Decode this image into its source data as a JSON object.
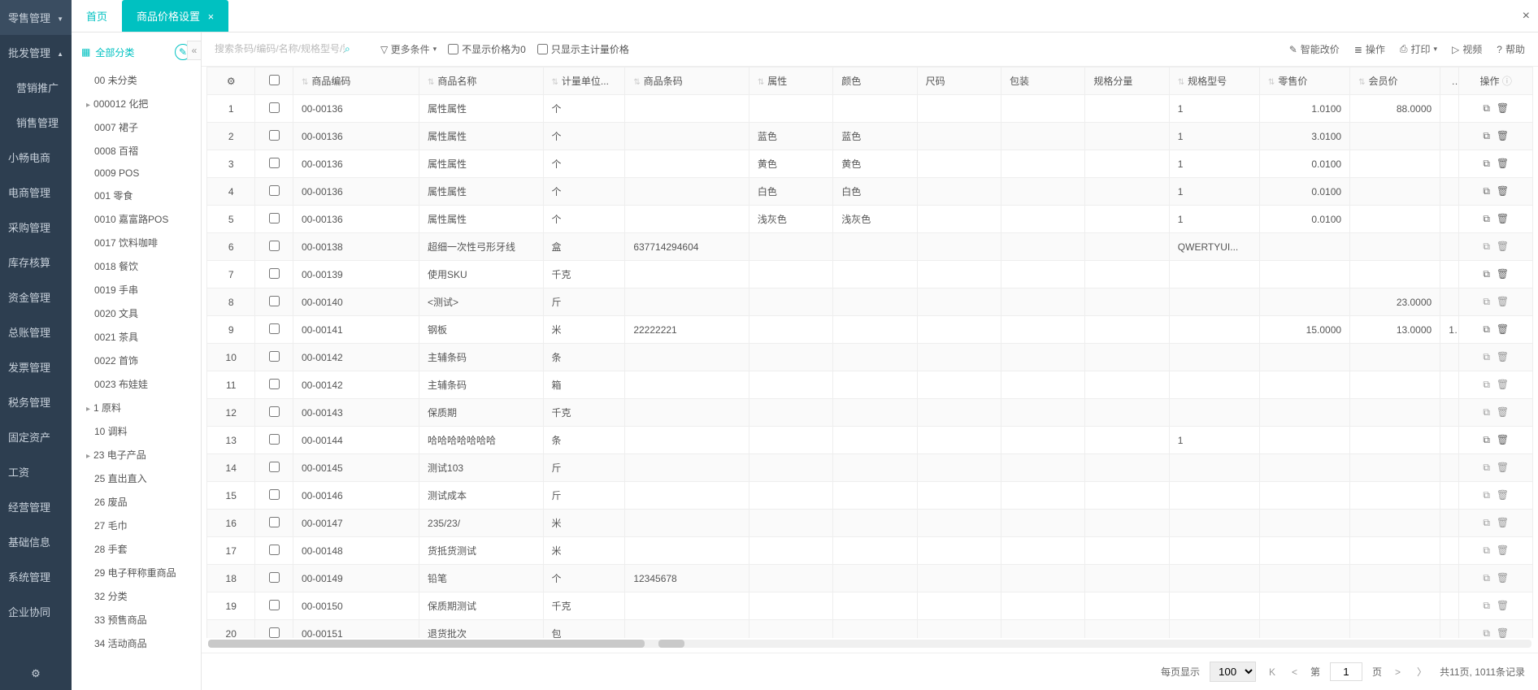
{
  "sidebar": {
    "items": [
      {
        "label": "零售管理",
        "expand": "down"
      },
      {
        "label": "批发管理",
        "expand": "up"
      },
      {
        "label": "营销推广",
        "sub": true
      },
      {
        "label": "销售管理",
        "sub": true
      },
      {
        "label": "小畅电商"
      },
      {
        "label": "电商管理"
      },
      {
        "label": "采购管理"
      },
      {
        "label": "库存核算"
      },
      {
        "label": "资金管理"
      },
      {
        "label": "总账管理"
      },
      {
        "label": "发票管理"
      },
      {
        "label": "税务管理"
      },
      {
        "label": "固定资产"
      },
      {
        "label": "工资"
      },
      {
        "label": "经营管理"
      },
      {
        "label": "基础信息"
      },
      {
        "label": "系统管理"
      },
      {
        "label": "企业协同"
      }
    ]
  },
  "tabs": {
    "home": "首页",
    "active": "商品价格设置",
    "close_glyph": "×"
  },
  "category": {
    "all": "全部分类",
    "items": [
      {
        "label": "00 未分类"
      },
      {
        "label": "000012 化把",
        "parent": true
      },
      {
        "label": "0007 裙子"
      },
      {
        "label": "0008 百褶"
      },
      {
        "label": "0009 POS"
      },
      {
        "label": "001 零食"
      },
      {
        "label": "0010 嘉富路POS"
      },
      {
        "label": "0017 饮料咖啡"
      },
      {
        "label": "0018 餐饮"
      },
      {
        "label": "0019 手串"
      },
      {
        "label": "0020 文具"
      },
      {
        "label": "0021 茶具"
      },
      {
        "label": "0022 首饰"
      },
      {
        "label": "0023 布娃娃"
      },
      {
        "label": "1 原料",
        "parent": true
      },
      {
        "label": "10 调料"
      },
      {
        "label": "23 电子产品",
        "parent": true
      },
      {
        "label": "25 直出直入"
      },
      {
        "label": "26 废品"
      },
      {
        "label": "27 毛巾"
      },
      {
        "label": "28 手套"
      },
      {
        "label": "29 电子秤称重商品"
      },
      {
        "label": "32 分类"
      },
      {
        "label": "33 预售商品"
      },
      {
        "label": "34 活动商品"
      }
    ]
  },
  "toolbar": {
    "search_placeholder": "搜索条码/编码/名称/规格型号/别名",
    "more_filter": "更多条件",
    "hide_zero": "不显示价格为0",
    "only_main": "只显示主计量价格",
    "smart_edit": "智能改价",
    "operate": "操作",
    "print": "打印",
    "video": "视频",
    "help": "帮助"
  },
  "columns": {
    "code": "商品编码",
    "name": "商品名称",
    "unit": "计量单位...",
    "barcode": "商品条码",
    "attr": "属性",
    "color": "颜色",
    "size": "尺码",
    "pack": "包装",
    "specqty": "规格分量",
    "specmodel": "规格型号",
    "retail": "零售价",
    "member": "会员价",
    "action": "操作"
  },
  "rows": [
    {
      "n": "1",
      "code": "00-00136",
      "name": "属性属性",
      "unit": "个",
      "barcode": "",
      "attr": "",
      "color": "",
      "specmodel": "1",
      "retail": "1.0100",
      "member": "88.0000",
      "act": true
    },
    {
      "n": "2",
      "code": "00-00136",
      "name": "属性属性",
      "unit": "个",
      "barcode": "",
      "attr": "蓝色",
      "color": "蓝色",
      "specmodel": "1",
      "retail": "3.0100",
      "member": "",
      "act": true
    },
    {
      "n": "3",
      "code": "00-00136",
      "name": "属性属性",
      "unit": "个",
      "barcode": "",
      "attr": "黄色",
      "color": "黄色",
      "specmodel": "1",
      "retail": "0.0100",
      "member": "",
      "act": true
    },
    {
      "n": "4",
      "code": "00-00136",
      "name": "属性属性",
      "unit": "个",
      "barcode": "",
      "attr": "白色",
      "color": "白色",
      "specmodel": "1",
      "retail": "0.0100",
      "member": "",
      "act": true
    },
    {
      "n": "5",
      "code": "00-00136",
      "name": "属性属性",
      "unit": "个",
      "barcode": "",
      "attr": "浅灰色",
      "color": "浅灰色",
      "specmodel": "1",
      "retail": "0.0100",
      "member": "",
      "act": true
    },
    {
      "n": "6",
      "code": "00-00138",
      "name": "超细一次性弓形牙线",
      "unit": "盒",
      "barcode": "637714294604",
      "attr": "",
      "color": "",
      "specmodel": "QWERTYUI...",
      "retail": "",
      "member": "",
      "act": false
    },
    {
      "n": "7",
      "code": "00-00139",
      "name": "使用SKU",
      "unit": "千克",
      "barcode": "",
      "attr": "",
      "color": "",
      "specmodel": "",
      "retail": "",
      "member": "",
      "act": true
    },
    {
      "n": "8",
      "code": "00-00140",
      "name": "<测试>",
      "unit": "斤",
      "barcode": "",
      "attr": "",
      "color": "",
      "specmodel": "",
      "retail": "",
      "member": "23.0000",
      "act": false
    },
    {
      "n": "9",
      "code": "00-00141",
      "name": "钢板",
      "unit": "米",
      "barcode": "22222221",
      "attr": "",
      "color": "",
      "specmodel": "",
      "retail": "15.0000",
      "member": "13.0000",
      "act": true,
      "extra": "1"
    },
    {
      "n": "10",
      "code": "00-00142",
      "name": "主辅条码",
      "unit": "条",
      "barcode": "",
      "attr": "",
      "color": "",
      "specmodel": "",
      "retail": "",
      "member": "",
      "act": false
    },
    {
      "n": "11",
      "code": "00-00142",
      "name": "主辅条码",
      "unit": "箱",
      "barcode": "",
      "attr": "",
      "color": "",
      "specmodel": "",
      "retail": "",
      "member": "",
      "act": false
    },
    {
      "n": "12",
      "code": "00-00143",
      "name": "保质期",
      "unit": "千克",
      "barcode": "",
      "attr": "",
      "color": "",
      "specmodel": "",
      "retail": "",
      "member": "",
      "act": false
    },
    {
      "n": "13",
      "code": "00-00144",
      "name": "哈哈哈哈哈哈哈",
      "unit": "条",
      "barcode": "",
      "attr": "",
      "color": "",
      "specmodel": "1",
      "retail": "",
      "member": "",
      "act": true
    },
    {
      "n": "14",
      "code": "00-00145",
      "name": "测试103",
      "unit": "斤",
      "barcode": "",
      "attr": "",
      "color": "",
      "specmodel": "",
      "retail": "",
      "member": "",
      "act": false
    },
    {
      "n": "15",
      "code": "00-00146",
      "name": "测试成本",
      "unit": "斤",
      "barcode": "",
      "attr": "",
      "color": "",
      "specmodel": "",
      "retail": "",
      "member": "",
      "act": false
    },
    {
      "n": "16",
      "code": "00-00147",
      "name": "235/23/",
      "unit": "米",
      "barcode": "",
      "attr": "",
      "color": "",
      "specmodel": "",
      "retail": "",
      "member": "",
      "act": false
    },
    {
      "n": "17",
      "code": "00-00148",
      "name": "货抵货测试",
      "unit": "米",
      "barcode": "",
      "attr": "",
      "color": "",
      "specmodel": "",
      "retail": "",
      "member": "",
      "act": false
    },
    {
      "n": "18",
      "code": "00-00149",
      "name": "铅笔",
      "unit": "个",
      "barcode": "12345678",
      "attr": "",
      "color": "",
      "specmodel": "",
      "retail": "",
      "member": "",
      "act": false
    },
    {
      "n": "19",
      "code": "00-00150",
      "name": "保质期测试",
      "unit": "千克",
      "barcode": "",
      "attr": "",
      "color": "",
      "specmodel": "",
      "retail": "",
      "member": "",
      "act": false
    },
    {
      "n": "20",
      "code": "00-00151",
      "name": "退货批次",
      "unit": "包",
      "barcode": "",
      "attr": "",
      "color": "",
      "specmodel": "",
      "retail": "",
      "member": "",
      "act": false
    }
  ],
  "pager": {
    "per_page_label": "每页显示",
    "page_size": "100",
    "page_prefix": "第",
    "current_page": "1",
    "page_suffix": "页",
    "summary": "共11页, 1011条记录"
  },
  "colors": {
    "accent": "#00c1c1",
    "sidebar_bg": "#2d3e50"
  }
}
